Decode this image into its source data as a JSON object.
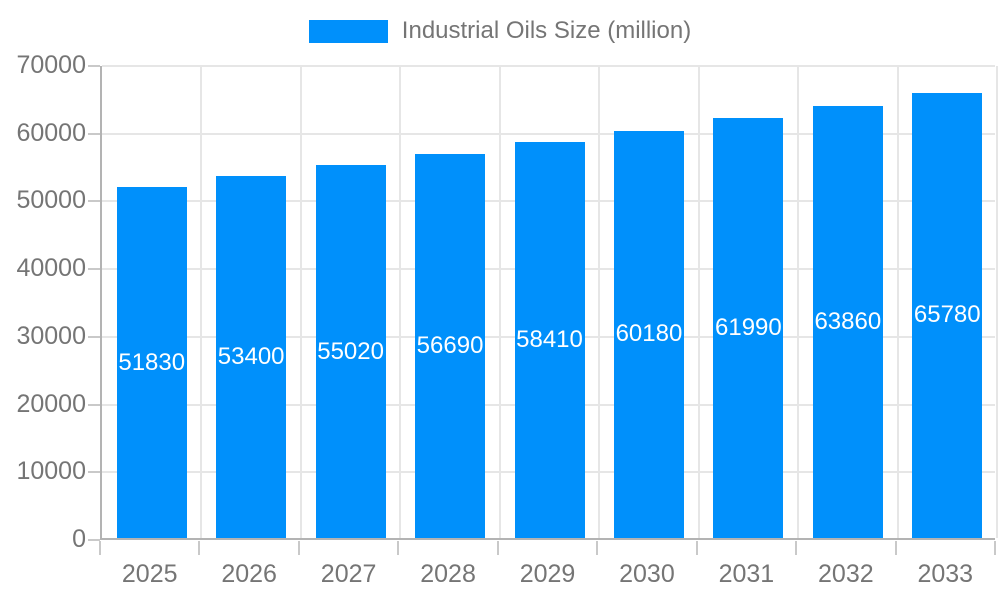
{
  "chart_data": {
    "type": "bar",
    "title": "Industrial Oils Size (million)",
    "legend": {
      "position": "top",
      "entries": [
        "Industrial Oils Size (million)"
      ]
    },
    "categories": [
      "2025",
      "2026",
      "2027",
      "2028",
      "2029",
      "2030",
      "2031",
      "2032",
      "2033"
    ],
    "series": [
      {
        "name": "Industrial Oils Size (million)",
        "values": [
          51830,
          53400,
          55020,
          56690,
          58410,
          60180,
          61990,
          63860,
          65780
        ]
      }
    ],
    "data_labels": [
      "51830",
      "53400",
      "55020",
      "56690",
      "58410",
      "60180",
      "61990",
      "63860",
      "65780"
    ],
    "xlabel": "",
    "ylabel": "",
    "ylim": [
      0,
      70000
    ],
    "ytick_step": 10000,
    "yticks": [
      "0",
      "10000",
      "20000",
      "30000",
      "40000",
      "50000",
      "60000",
      "70000"
    ],
    "grid": true,
    "colors": {
      "bar": "#0090fb",
      "bar_label_text": "#ffffff",
      "axis_text": "#757575",
      "axis_line": "#b3b3b3",
      "gridline": "#e6e6e6",
      "background": "#ffffff"
    }
  }
}
